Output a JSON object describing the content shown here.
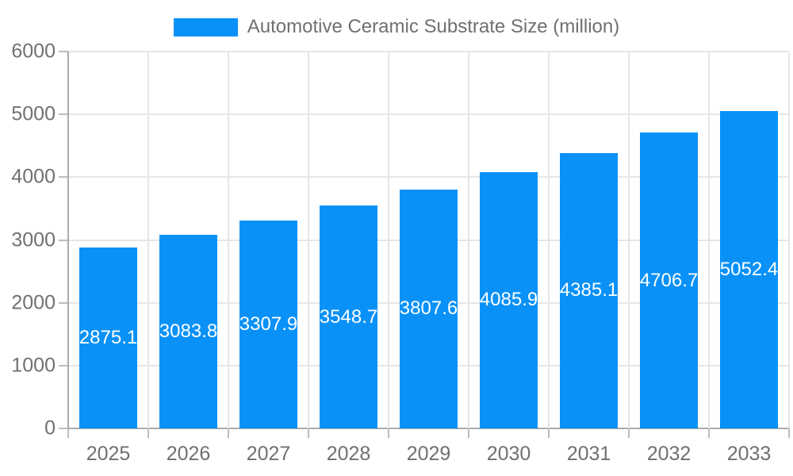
{
  "legend": {
    "label": "Automotive Ceramic Substrate Size (million)"
  },
  "chart_data": {
    "type": "bar",
    "title": "Automotive Ceramic Substrate Size (million)",
    "categories": [
      "2025",
      "2026",
      "2027",
      "2028",
      "2029",
      "2030",
      "2031",
      "2032",
      "2033"
    ],
    "values": [
      2875.1,
      3083.8,
      3307.9,
      3548.7,
      3807.6,
      4085.9,
      4385.1,
      4706.7,
      5052.4
    ],
    "xlabel": "",
    "ylabel": "",
    "ylim": [
      0,
      6000
    ],
    "ytick_step": 1000,
    "yticks": [
      "0",
      "1000",
      "2000",
      "3000",
      "4000",
      "5000",
      "6000"
    ],
    "grid": true,
    "legend_position": "top",
    "data_labels_inside_bars": true,
    "colors": {
      "bar": "#0991f7",
      "grid": "#e6e6e6",
      "axis_line": "#ababab",
      "tick_mark": "#bdbdbd",
      "axis_text": "#707070",
      "data_label": "#ffffff",
      "background": "#ffffff"
    }
  }
}
